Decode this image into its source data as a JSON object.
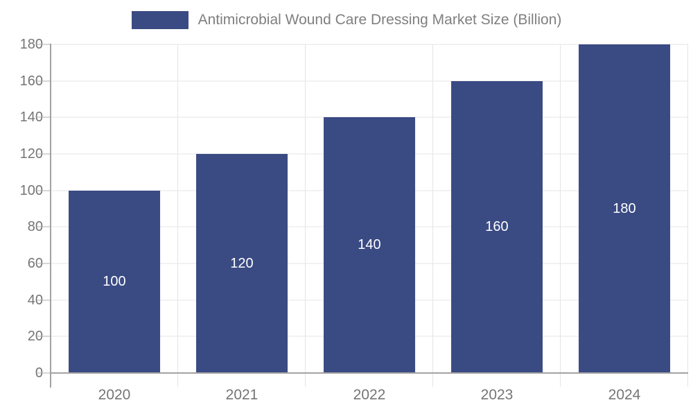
{
  "chart_data": {
    "type": "bar",
    "title": "Antimicrobial Wound Care Dressing Market Size (Billion)",
    "legend_label": "Antimicrobial Wound Care Dressing Market Size (Billion)",
    "categories": [
      "2020",
      "2021",
      "2022",
      "2023",
      "2024"
    ],
    "values": [
      100,
      120,
      140,
      160,
      180
    ],
    "data_labels": [
      "100",
      "120",
      "140",
      "160",
      "180"
    ],
    "xlabel": "",
    "ylabel": "",
    "ylim": [
      0,
      180
    ],
    "yticks": [
      0,
      20,
      40,
      60,
      80,
      100,
      120,
      140,
      160,
      180
    ],
    "grid": true,
    "legend_position": "top-center",
    "colors": {
      "bar": "#3A4A83",
      "data_label": "#FFFFFF",
      "axis_text": "#757575",
      "legend_text": "#7F7F7F",
      "gridline": "#E4E4E4",
      "axis_line": "#A2A2A2"
    }
  }
}
